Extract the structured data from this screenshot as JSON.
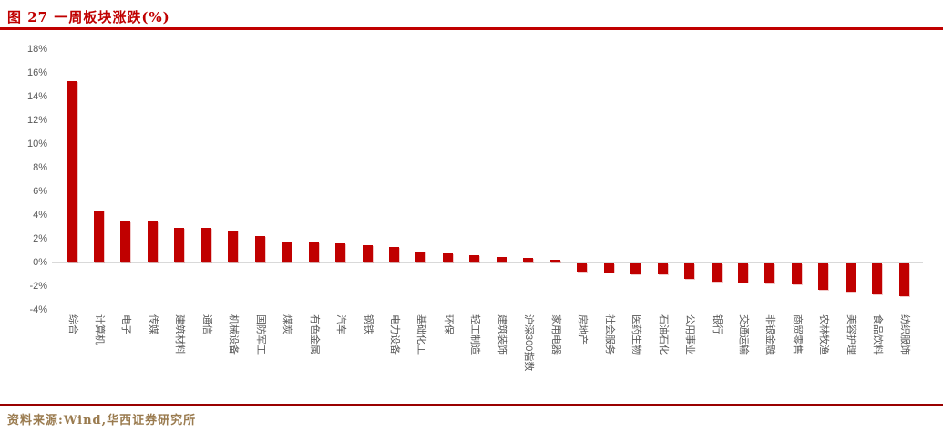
{
  "figure": {
    "title": "图 27 一周板块涨跌(%)",
    "source": "资料来源:Wind,华西证券研究所"
  },
  "colors": {
    "title_red": "#C00000",
    "top_rule_red": "#C00000",
    "bottom_rule_red": "#990000",
    "bar_red": "#C00000",
    "axis_line_gray": "#D9D9D9",
    "tick_text_gray": "#595959",
    "source_text_brown": "#9A7B4F"
  },
  "chart_data": {
    "type": "bar",
    "title": "图 27 一周板块涨跌(%)",
    "xlabel": "",
    "ylabel": "",
    "categories": [
      "综合",
      "计算机",
      "电子",
      "传媒",
      "建筑材料",
      "通信",
      "机械设备",
      "国防军工",
      "煤炭",
      "有色金属",
      "汽车",
      "钢铁",
      "电力设备",
      "基础化工",
      "环保",
      "轻工制造",
      "建筑装饰",
      "沪深300指数",
      "家用电器",
      "房地产",
      "社会服务",
      "医药生物",
      "石油石化",
      "公用事业",
      "银行",
      "交通运输",
      "非银金融",
      "商贸零售",
      "农林牧渔",
      "美容护理",
      "食品饮料",
      "纺织服饰"
    ],
    "values": [
      15.3,
      4.4,
      3.5,
      3.5,
      2.9,
      2.9,
      2.7,
      2.2,
      1.8,
      1.7,
      1.6,
      1.5,
      1.3,
      0.9,
      0.8,
      0.6,
      0.5,
      0.4,
      0.2,
      -0.7,
      -0.8,
      -0.9,
      -0.9,
      -1.3,
      -1.5,
      -1.6,
      -1.7,
      -1.8,
      -2.2,
      -2.4,
      -2.6,
      -2.8
    ],
    "ylim": [
      -4,
      18
    ],
    "ytick_step": 2,
    "ytick_labels": [
      "18%",
      "16%",
      "14%",
      "12%",
      "10%",
      "8%",
      "6%",
      "4%",
      "2%",
      "0%",
      "-2%",
      "-4%"
    ],
    "grid": false,
    "legend": null,
    "bar_color": "#C00000"
  }
}
